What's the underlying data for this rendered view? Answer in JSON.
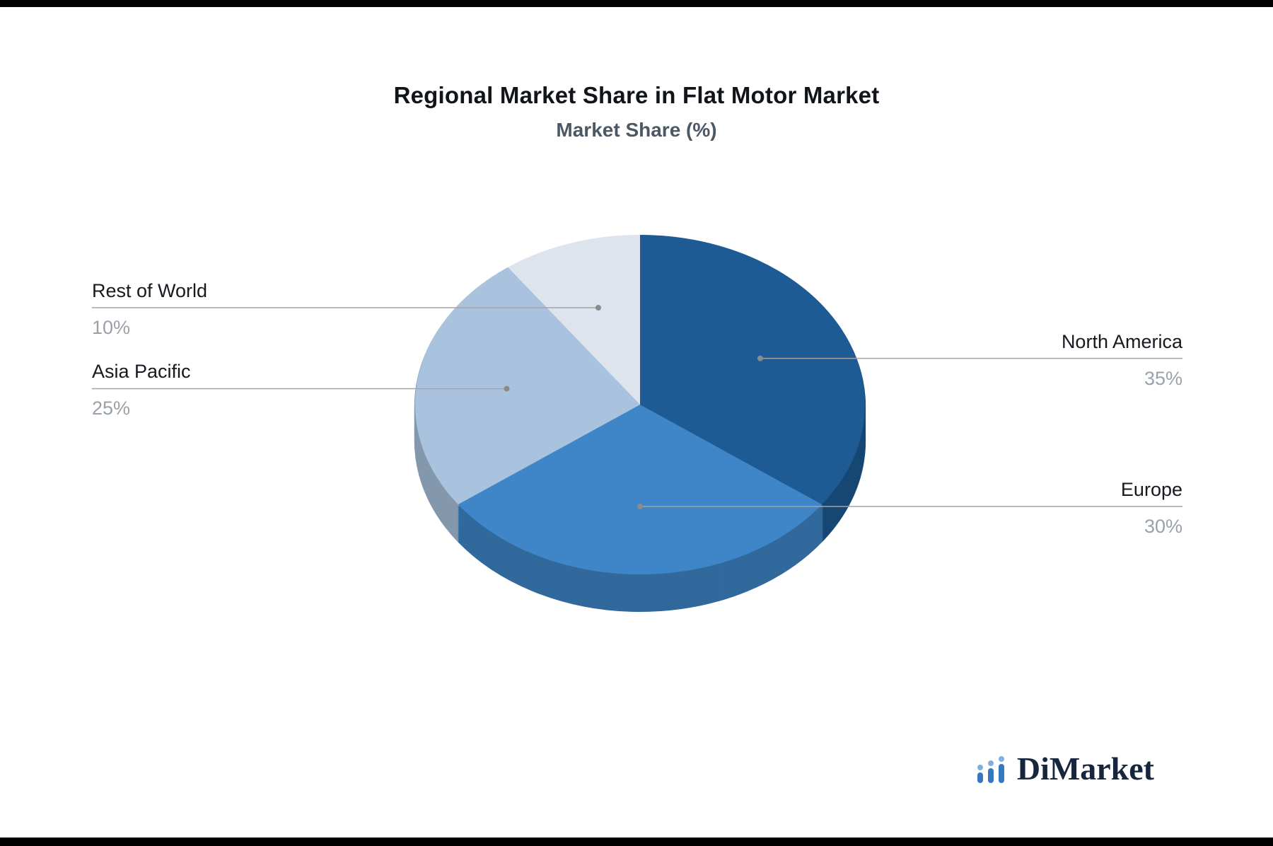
{
  "chart_data": {
    "type": "pie",
    "style": "3d",
    "title": "Regional Market Share in Flat Motor Market",
    "subtitle": "Market Share (%)",
    "unit": "%",
    "start_angle_deg": -90,
    "direction": "clockwise",
    "legend_position": "none",
    "labels_style": "callout-lines",
    "slices": [
      {
        "label": "North America",
        "value": 35,
        "pct_label": "35%",
        "color": "#1e5b94",
        "label_side": "right"
      },
      {
        "label": "Europe",
        "value": 30,
        "pct_label": "30%",
        "color": "#3f86c8",
        "label_side": "right"
      },
      {
        "label": "Asia Pacific",
        "value": 25,
        "pct_label": "25%",
        "color": "#a9c3de",
        "label_side": "left"
      },
      {
        "label": "Rest of World",
        "value": 10,
        "pct_label": "10%",
        "color": "#dde4ee",
        "label_side": "left"
      }
    ]
  },
  "brand": {
    "name": "DiMarket",
    "icon": "bar-chart-dots-icon",
    "icon_color": "#3578be",
    "icon_dot_color": "#7fb0dd",
    "text_color": "#17263f"
  }
}
